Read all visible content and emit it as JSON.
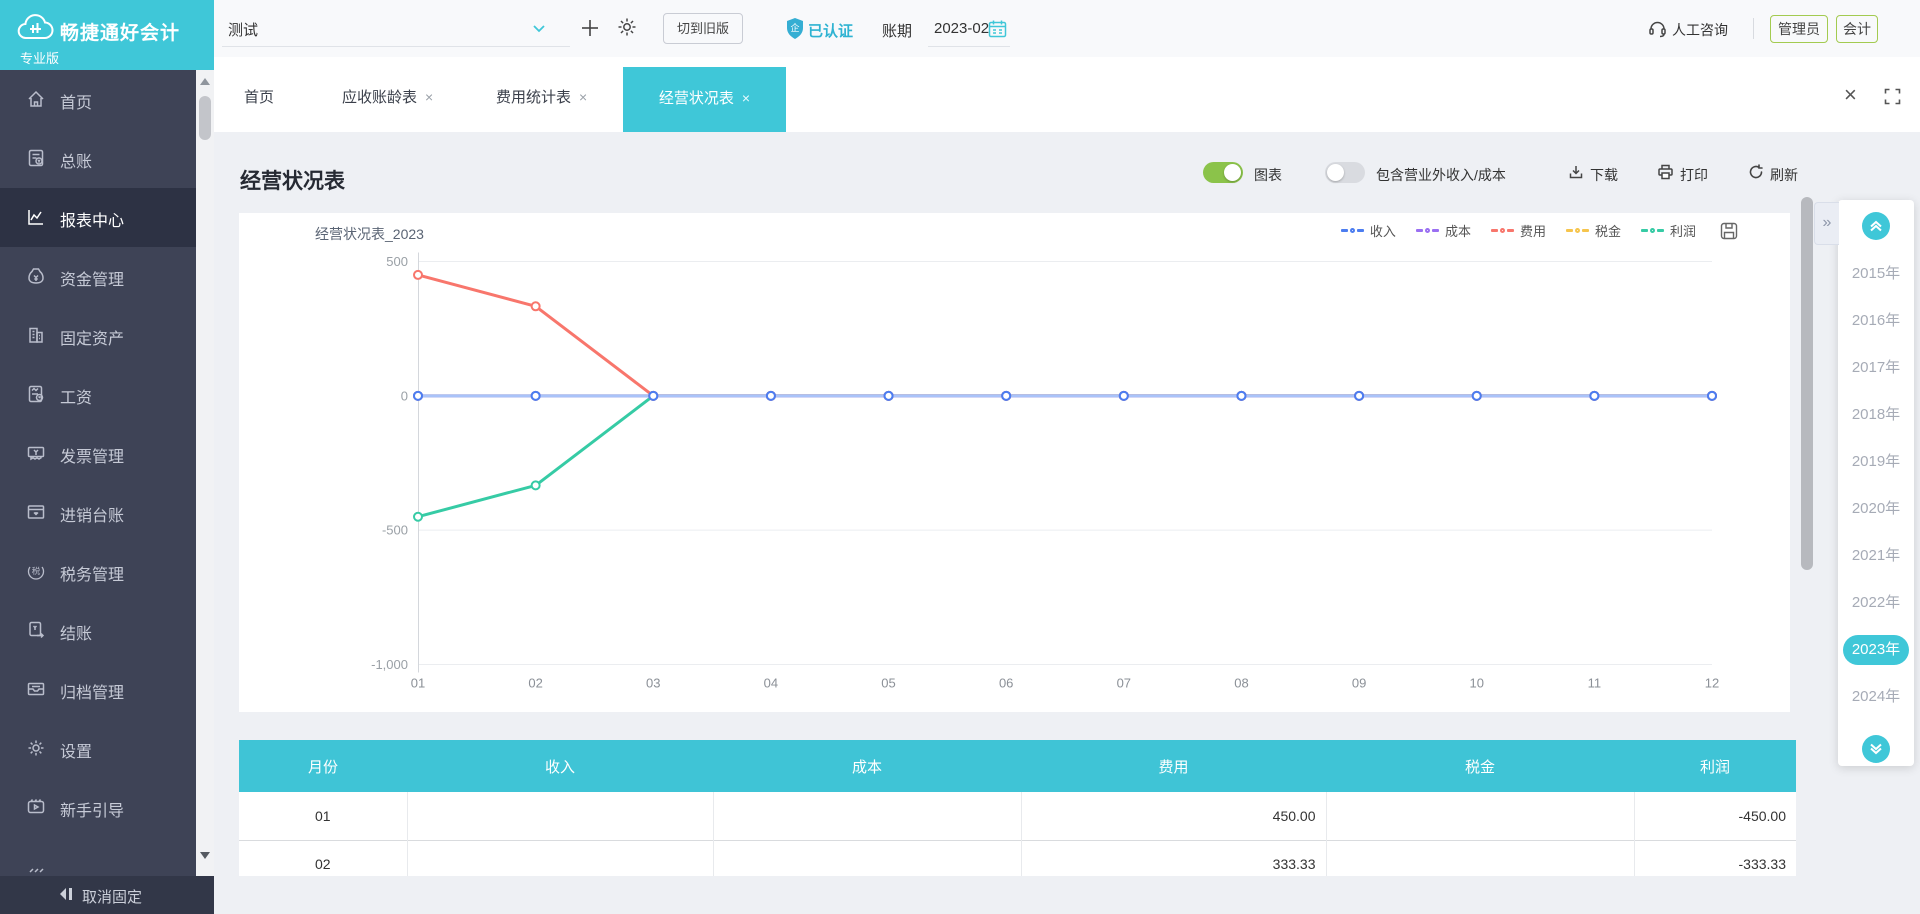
{
  "colors": {
    "accent_teal": "#3fc7d8",
    "toggle_on_green": "#8bc34a",
    "badge_green_border": "#a3cb50",
    "sidebar_bg": "#3e4356",
    "sidebar_selected_bg": "#2d3244"
  },
  "brand": {
    "name": "畅捷通好会计",
    "edition": "专业版"
  },
  "sidebar": {
    "items": [
      {
        "label": "首页",
        "icon": "home-icon",
        "selected": false
      },
      {
        "label": "总账",
        "icon": "general-ledger-icon",
        "selected": false
      },
      {
        "label": "报表中心",
        "icon": "report-center-icon",
        "selected": true
      },
      {
        "label": "资金管理",
        "icon": "funds-management-icon",
        "selected": false
      },
      {
        "label": "固定资产",
        "icon": "fixed-assets-icon",
        "selected": false
      },
      {
        "label": "工资",
        "icon": "payroll-icon",
        "selected": false
      },
      {
        "label": "发票管理",
        "icon": "invoice-management-icon",
        "selected": false
      },
      {
        "label": "进销台账",
        "icon": "purchase-sales-ledger-icon",
        "selected": false
      },
      {
        "label": "税务管理",
        "icon": "tax-management-icon",
        "selected": false
      },
      {
        "label": "结账",
        "icon": "closing-icon",
        "selected": false
      },
      {
        "label": "归档管理",
        "icon": "archive-management-icon",
        "selected": false
      },
      {
        "label": "设置",
        "icon": "settings-icon",
        "selected": false
      },
      {
        "label": "新手引导",
        "icon": "beginner-guide-icon",
        "selected": false
      }
    ],
    "unpin_label": "取消固定"
  },
  "header": {
    "account_name": "测试",
    "switch_old_label": "切到旧版",
    "certified_label": "已认证",
    "period_label": "账期",
    "period_value": "2023-02",
    "support_label": "人工咨询",
    "role_badges": [
      "管理员",
      "会计"
    ]
  },
  "tabs": {
    "items": [
      {
        "label": "首页",
        "closable": false,
        "active": false
      },
      {
        "label": "应收账龄表",
        "closable": true,
        "active": false
      },
      {
        "label": "费用统计表",
        "closable": true,
        "active": false
      },
      {
        "label": "经营状况表",
        "closable": true,
        "active": true
      }
    ],
    "close_glyph": "×"
  },
  "page": {
    "title": "经营状况表",
    "chart_toggle_label": "图表",
    "chart_toggle_on": true,
    "include_toggle_label": "包含营业外收入/成本",
    "include_toggle_on": false,
    "download_label": "下载",
    "print_label": "打印",
    "refresh_label": "刷新"
  },
  "chart_data": {
    "type": "line",
    "title": "经营状况表_2023",
    "x": [
      "01",
      "02",
      "03",
      "04",
      "05",
      "06",
      "07",
      "08",
      "09",
      "10",
      "11",
      "12"
    ],
    "series": [
      {
        "name": "收入",
        "color": "#4c7df0",
        "line_color": "#a9c3f9",
        "values": [
          0,
          0,
          0,
          0,
          0,
          0,
          0,
          0,
          0,
          0,
          0,
          0
        ]
      },
      {
        "name": "成本",
        "color": "#9a6ff2",
        "line_color": "#9a6ff2",
        "values": [
          0,
          0,
          0,
          0,
          0,
          0,
          0,
          0,
          0,
          0,
          0,
          0
        ]
      },
      {
        "name": "费用",
        "color": "#f8766c",
        "line_color": "#f8766c",
        "values": [
          450,
          333.33,
          0,
          0,
          0,
          0,
          0,
          0,
          0,
          0,
          0,
          0
        ]
      },
      {
        "name": "税金",
        "color": "#f6c54d",
        "line_color": "#f6c54d",
        "values": [
          0,
          0,
          0,
          0,
          0,
          0,
          0,
          0,
          0,
          0,
          0,
          0
        ]
      },
      {
        "name": "利润",
        "color": "#36cba5",
        "line_color": "#36cba5",
        "values": [
          -450,
          -333.33,
          0,
          0,
          0,
          0,
          0,
          0,
          0,
          0,
          0,
          0
        ]
      }
    ],
    "ylim": [
      -1000,
      500
    ],
    "yticks": [
      {
        "value": 500,
        "label": "500"
      },
      {
        "value": 0,
        "label": "0"
      },
      {
        "value": -500,
        "label": "-500"
      },
      {
        "value": -1000,
        "label": "-1,000"
      }
    ],
    "grid": true,
    "legend_position": "top-right"
  },
  "year_panel": {
    "years": [
      "2015年",
      "2016年",
      "2017年",
      "2018年",
      "2019年",
      "2020年",
      "2021年",
      "2022年",
      "2023年",
      "2024年"
    ],
    "selected": "2023年"
  },
  "table": {
    "headers": [
      "月份",
      "收入",
      "成本",
      "费用",
      "税金",
      "利润"
    ],
    "rows": [
      [
        "01",
        "",
        "",
        "450.00",
        "",
        "-450.00"
      ],
      [
        "02",
        "",
        "",
        "333.33",
        "",
        "-333.33"
      ]
    ]
  }
}
